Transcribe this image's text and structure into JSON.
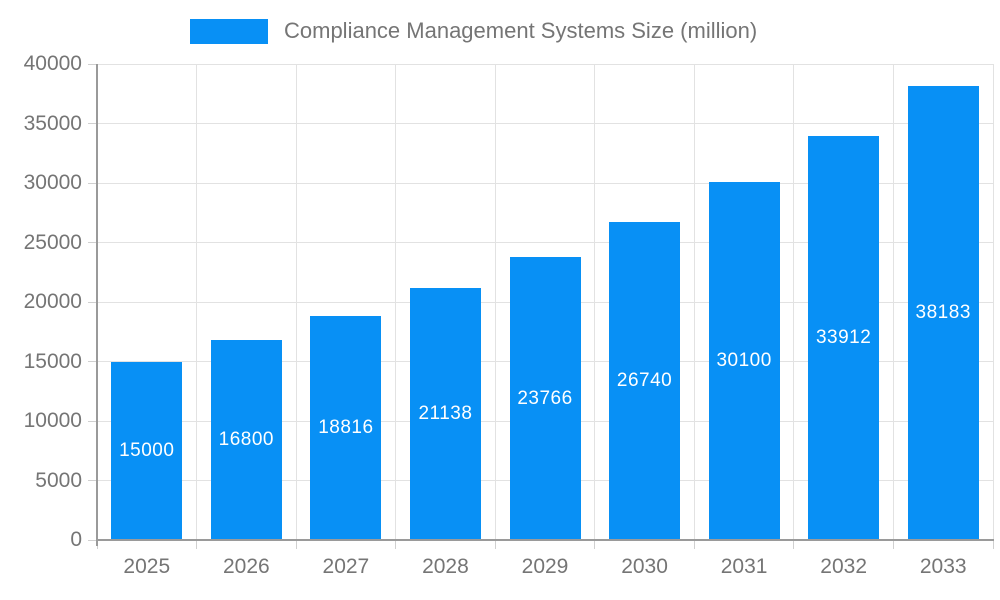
{
  "legend": {
    "label": "Compliance Management Systems Size (million)"
  },
  "chart_data": {
    "type": "bar",
    "title": "Compliance Management Systems Size (million)",
    "categories": [
      "2025",
      "2026",
      "2027",
      "2028",
      "2029",
      "2030",
      "2031",
      "2032",
      "2033"
    ],
    "values": [
      15000,
      16800,
      18816,
      21138,
      23766,
      26740,
      30100,
      33912,
      38183
    ],
    "value_labels": [
      "15000",
      "16800",
      "18816",
      "21138",
      "23766",
      "26740",
      "30100",
      "33912",
      "38183"
    ],
    "xlabel": "",
    "ylabel": "",
    "ylim": [
      0,
      40000
    ],
    "yticks": [
      0,
      5000,
      10000,
      15000,
      20000,
      25000,
      30000,
      35000,
      40000
    ],
    "ytick_labels": [
      "0",
      "5000",
      "10000",
      "15000",
      "20000",
      "25000",
      "30000",
      "35000",
      "40000"
    ],
    "grid": true,
    "legend_position": "top",
    "colors": {
      "bar": "#0890f5",
      "grid": "#e2e2e2",
      "axis": "#9a9a9a",
      "tick": "#d0d0d0",
      "tick_label": "#757575",
      "bar_label": "#ffffff"
    }
  }
}
